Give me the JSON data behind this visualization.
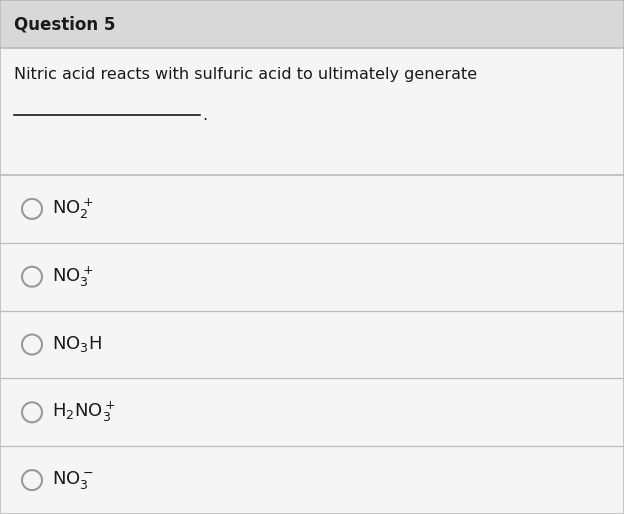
{
  "title": "Question 5",
  "question_text": "Nitric acid reacts with sulfuric acid to ultimately generate",
  "underline_text": "___________________.",
  "option_labels_latex": [
    "$\\mathrm{NO_2^+}$",
    "$\\mathrm{NO_3^+}$",
    "$\\mathrm{NO_3H}$",
    "$\\mathrm{H_2NO_3^+}$",
    "$\\mathrm{NO_3^-}$"
  ],
  "bg_color": "#e8e8e8",
  "header_bg": "#d8d8d8",
  "body_bg": "#f5f5f5",
  "divider_color": "#bbbbbb",
  "text_color": "#1a1a1a",
  "circle_color": "#999999",
  "title_fontsize": 12,
  "question_fontsize": 11.5,
  "option_fontsize": 13,
  "fig_width": 6.24,
  "fig_height": 5.14,
  "dpi": 100
}
